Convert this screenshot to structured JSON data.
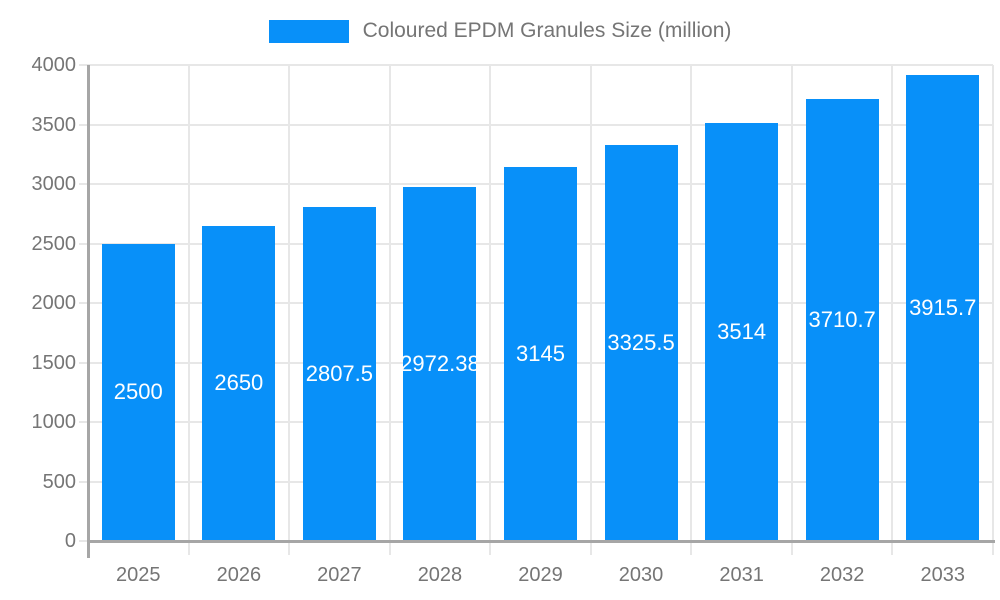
{
  "chart_data": {
    "type": "bar",
    "title": "",
    "legend": {
      "label": "Coloured EPDM Granules Size (million)",
      "position": "top-center"
    },
    "categories": [
      "2025",
      "2026",
      "2027",
      "2028",
      "2029",
      "2030",
      "2031",
      "2032",
      "2033"
    ],
    "series": [
      {
        "name": "Coloured EPDM Granules Size (million)",
        "values": [
          2500,
          2650,
          2807.5,
          2972.38,
          3145,
          3325.5,
          3514,
          3710.7,
          3915.7
        ],
        "value_labels": [
          "2500",
          "2650",
          "2807.5",
          "2972.38",
          "3145",
          "3325.5",
          "3514",
          "3710.7",
          "3915.7"
        ]
      }
    ],
    "xlabel": "",
    "ylabel": "",
    "ylim": [
      0,
      4000
    ],
    "y_tick_step": 500,
    "y_ticks": [
      "0",
      "500",
      "1000",
      "1500",
      "2000",
      "2500",
      "3000",
      "3500",
      "4000"
    ],
    "grid": true,
    "colors": {
      "bar": "#0890f9",
      "axis_line": "#a6a6a6",
      "gridline": "#e7e7e7",
      "tick_text": "#757575",
      "legend_text": "#757575",
      "value_label_text": "#ffffff",
      "background": "#ffffff"
    }
  }
}
